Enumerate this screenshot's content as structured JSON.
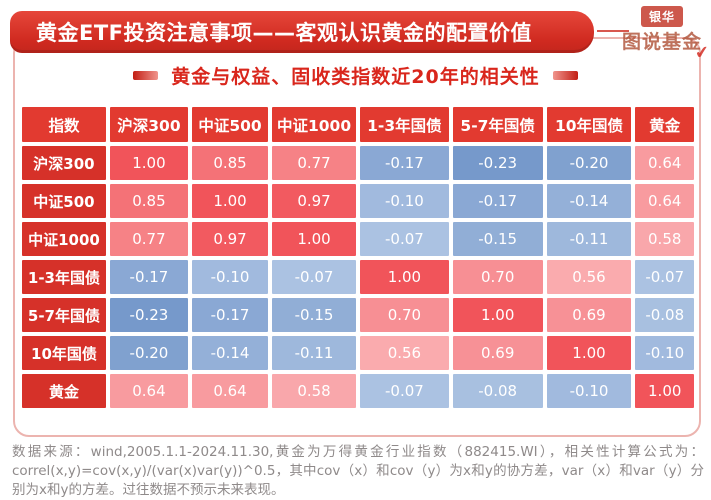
{
  "header": {
    "title": "黄金ETF投资注意事项——客观认识黄金的配置价值",
    "banner_color_top": "#E6473B",
    "banner_color_bottom": "#C3261D",
    "logo": {
      "badge": "银华",
      "name": "图说基金",
      "check": "✔"
    }
  },
  "card": {
    "subtitle": "黄金与权益、固收类指数近20年的相关性",
    "accent_color": "#D9261C",
    "border_color": "#ECB4AF"
  },
  "table": {
    "header": [
      "指数",
      "沪深300",
      "中证500",
      "中证1000",
      "1-3年国债",
      "5-7年国债",
      "10年国债",
      "黄金"
    ],
    "colors": {
      "header_bg": "#E23A30",
      "row_label_bg": "#D63129",
      "pos_low": "#FBB7BA",
      "pos_high": "#F1545A",
      "neg_low": "#C3D4EC",
      "neg_high": "#6F94C8"
    }
  },
  "chart_data": {
    "type": "heatmap",
    "title": "黄金与权益、固收类指数近20年的相关性",
    "x_labels": [
      "沪深300",
      "中证500",
      "中证1000",
      "1-3年国债",
      "5-7年国债",
      "10年国债",
      "黄金"
    ],
    "y_labels": [
      "沪深300",
      "中证500",
      "中证1000",
      "1-3年国债",
      "5-7年国债",
      "10年国债",
      "黄金"
    ],
    "matrix": [
      [
        1.0,
        0.85,
        0.77,
        -0.17,
        -0.23,
        -0.2,
        0.64
      ],
      [
        0.85,
        1.0,
        0.97,
        -0.1,
        -0.17,
        -0.14,
        0.64
      ],
      [
        0.77,
        0.97,
        1.0,
        -0.07,
        -0.15,
        -0.11,
        0.58
      ],
      [
        -0.17,
        -0.1,
        -0.07,
        1.0,
        0.7,
        0.56,
        -0.07
      ],
      [
        -0.23,
        -0.17,
        -0.15,
        0.7,
        1.0,
        0.69,
        -0.08
      ],
      [
        -0.2,
        -0.14,
        -0.11,
        0.56,
        0.69,
        1.0,
        -0.1
      ],
      [
        0.64,
        0.64,
        0.58,
        -0.07,
        -0.08,
        -0.1,
        1.0
      ]
    ],
    "value_format": "2 decimals",
    "color_rule": "positive=red scale, negative=blue scale",
    "legend": "none",
    "grid": "white 4px gaps between cells"
  },
  "footer": {
    "note": "数据来源：wind,2005.1.1-2024.11.30,黄金为万得黄金行业指数（882415.WI），相关性计算公式为：correl(x,y)=cov(x,y)/(var(x)var(y))^0.5，其中cov（x）和cov（y）为x和y的协方差，var（x）和var（y）分别为x和y的方差。过往数据不预示未来表现。"
  }
}
